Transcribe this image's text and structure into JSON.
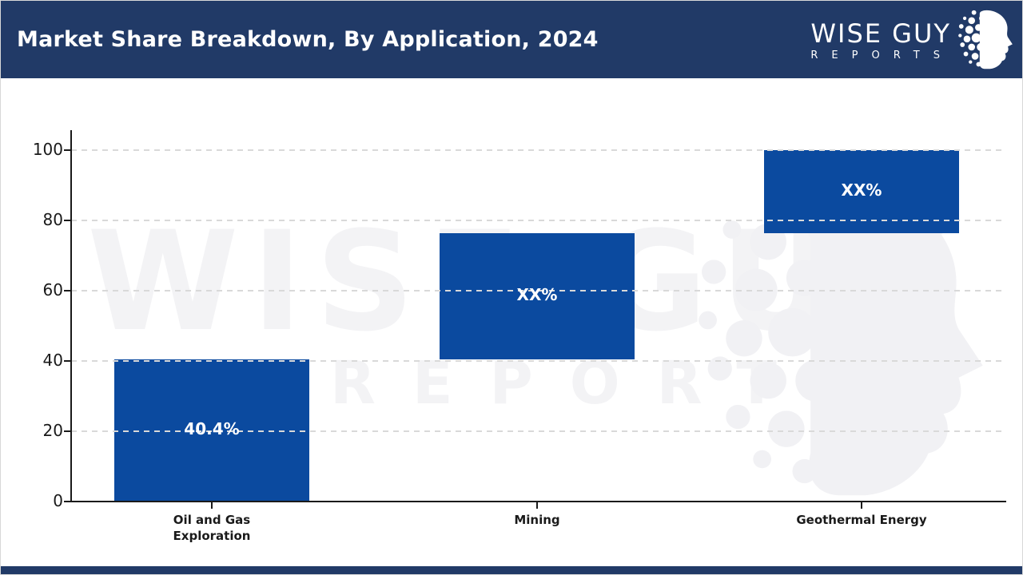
{
  "header": {
    "title": "Market Share Breakdown, By Application, 2024"
  },
  "logo": {
    "wordmark": "WISE GUY",
    "subtext": "REPORTS"
  },
  "watermark": {
    "wordmark": "WISE GUY",
    "subtext": "REPORTS"
  },
  "colors": {
    "header_bg": "#213a67",
    "footer_bg": "#213a67",
    "bar": "#0b4a9f",
    "bar_label": "#ffffff",
    "axis": "#1a1a1a",
    "grid_line": "#d9d9d9",
    "text": "#1a1a1a",
    "watermark": "#f3f3f5",
    "page_bg": "#ffffff"
  },
  "chart_data": {
    "type": "bar",
    "variant": "floating-waterfall",
    "title": "Market Share Breakdown, By Application, 2024",
    "categories": [
      "Oil and Gas Exploration",
      "Mining",
      "Geothermal Energy"
    ],
    "categories_display": [
      "Oil and Gas\nExploration",
      "Mining",
      "Geothermal Energy"
    ],
    "segments": [
      {
        "category": "Oil and Gas Exploration",
        "start": 0,
        "end": 40.4,
        "label": "40.4%"
      },
      {
        "category": "Mining",
        "start": 40.4,
        "end": 76.2,
        "label": "XX%"
      },
      {
        "category": "Geothermal Energy",
        "start": 76.2,
        "end": 100,
        "label": "XX%"
      }
    ],
    "ylim": [
      0,
      100
    ],
    "yticks": [
      0,
      20,
      40,
      60,
      80,
      100
    ],
    "xlabel": "",
    "ylabel": "",
    "legend": "none",
    "grid": {
      "horizontal": true,
      "style": "dashed",
      "drawn_over_bars": true
    }
  }
}
